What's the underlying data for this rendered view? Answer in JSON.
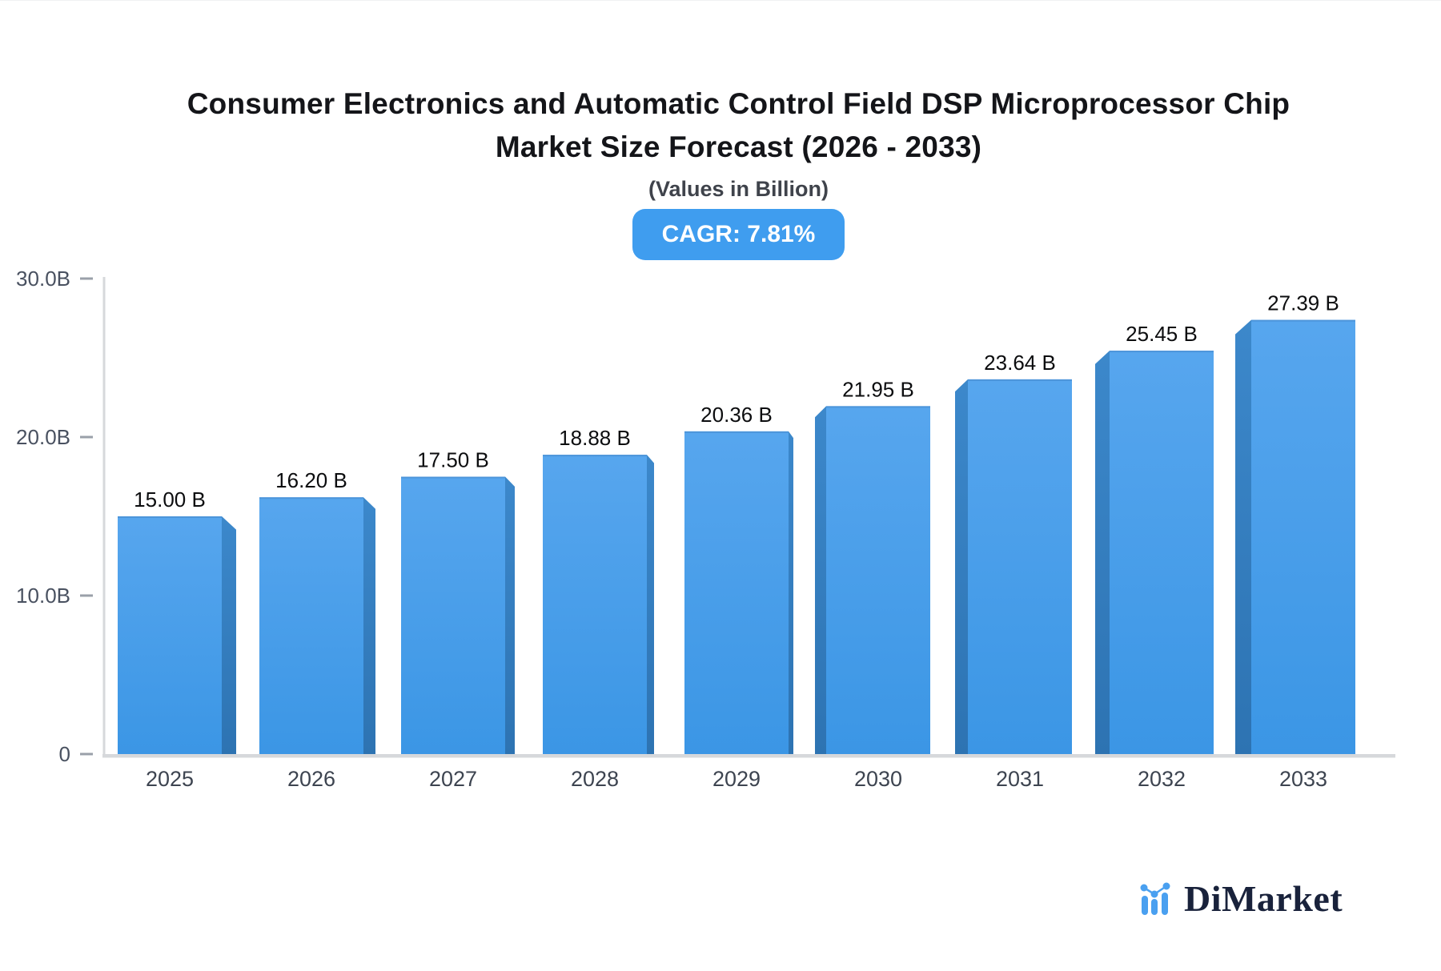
{
  "header": {
    "title_line1": "Consumer Electronics and Automatic Control Field DSP Microprocessor Chip",
    "title_line2": "Market Size Forecast (2026 - 2033)",
    "subtitle": "(Values in Billion)",
    "cagr_badge": "CAGR: 7.81%"
  },
  "chart_data": {
    "type": "bar",
    "title": "Consumer Electronics and Automatic Control Field DSP Microprocessor Chip Market Size Forecast (2026 - 2033)",
    "subtitle": "(Values in Billion)",
    "cagr_percent": 7.81,
    "unit": "Billion USD",
    "categories": [
      "2025",
      "2026",
      "2027",
      "2028",
      "2029",
      "2030",
      "2031",
      "2032",
      "2033"
    ],
    "values": [
      15.0,
      16.2,
      17.5,
      18.88,
      20.36,
      21.95,
      23.64,
      25.45,
      27.39
    ],
    "bar_labels": [
      "15.00 B",
      "16.20 B",
      "17.50 B",
      "18.88 B",
      "20.36 B",
      "21.95 B",
      "23.64 B",
      "25.45 B",
      "27.39 B"
    ],
    "ylim": [
      0,
      30
    ],
    "yticks": [
      {
        "value": 0,
        "label": "0"
      },
      {
        "value": 10,
        "label": "10.0B"
      },
      {
        "value": 20,
        "label": "20.0B"
      },
      {
        "value": 30,
        "label": "30.0B"
      }
    ],
    "grid": false,
    "legend": "none",
    "colors": {
      "bar_face_top": "#57a6ee",
      "bar_face_bottom": "#3b96e5",
      "bar_top_edge": "#4c95da",
      "bar_side_top": "#3c88cb",
      "bar_side_bottom": "#2d73b2",
      "axis_line": "#d6d8db",
      "tick": "#9aa0a9",
      "value_label": "#0c0d0f",
      "year_label": "#3d4450",
      "ytick_label": "#495160"
    }
  },
  "branding": {
    "logo_text": "DiMarket",
    "logo_icon": "bar-chart-logo-icon",
    "logo_blue": "#4aa0f0",
    "logo_navy": "#19223b"
  },
  "colors": {
    "accent_blue": "#3f9def",
    "background": "#ffffff"
  }
}
